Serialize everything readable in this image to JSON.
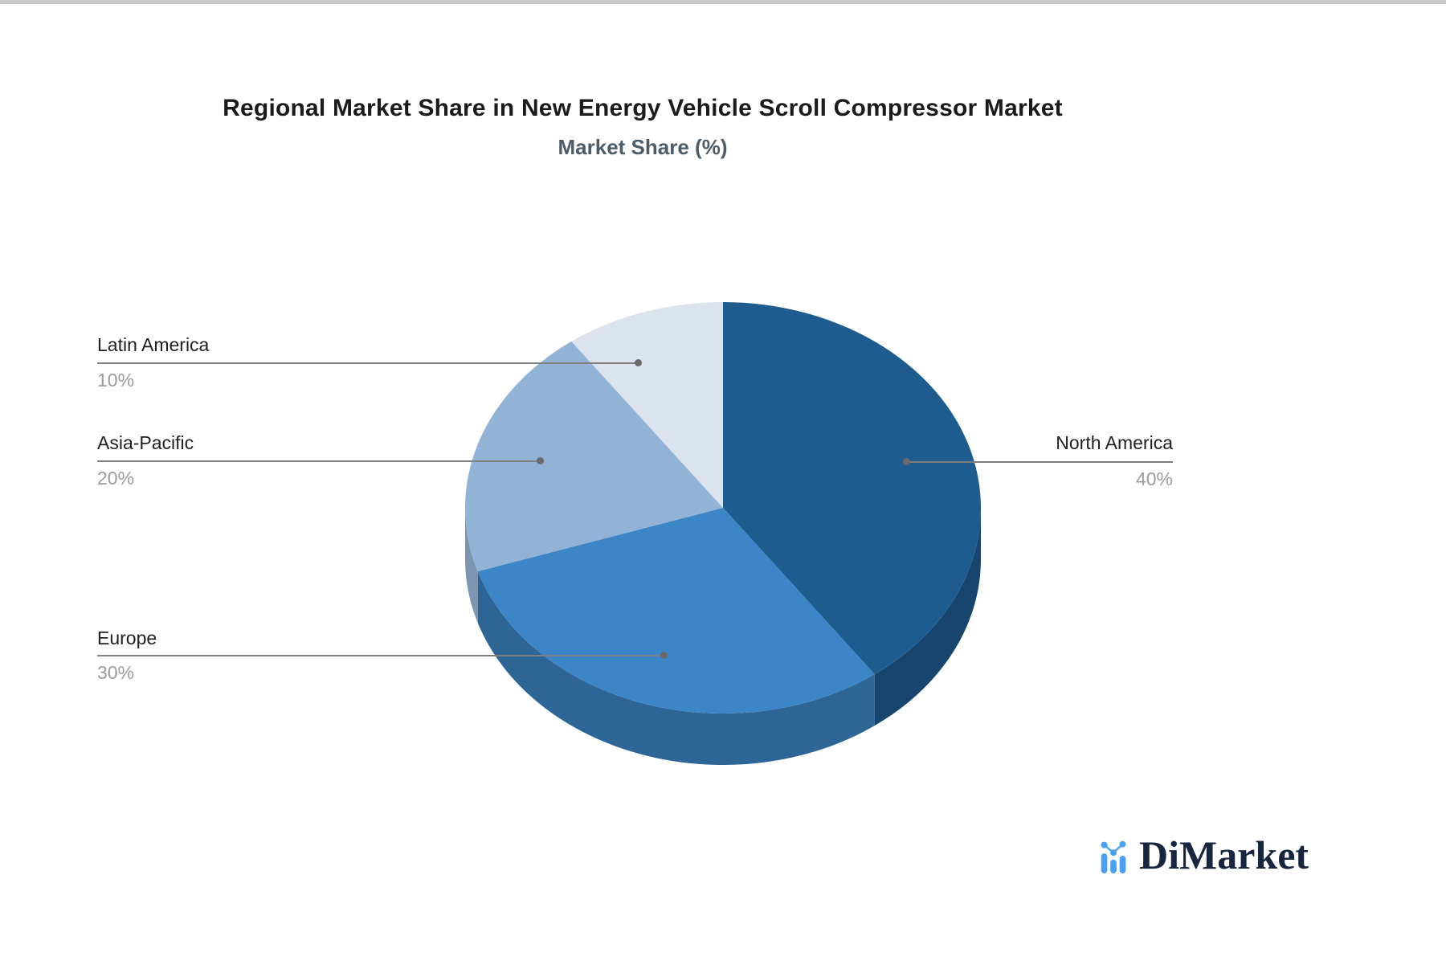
{
  "title": "Regional Market Share in New Energy Vehicle Scroll Compressor Market",
  "subtitle": "Market Share (%)",
  "callouts": [
    {
      "id": "latin-america",
      "label": "Latin America",
      "value": "10%"
    },
    {
      "id": "asia-pacific",
      "label": "Asia-Pacific",
      "value": "20%"
    },
    {
      "id": "europe",
      "label": "Europe",
      "value": "30%"
    },
    {
      "id": "north-america",
      "label": "North America",
      "value": "40%"
    }
  ],
  "brand": {
    "name": "DiMarket",
    "icon": "bar-chart-logo-icon",
    "icon_color": "#4aa1f4",
    "text_color": "#17263e"
  },
  "chart_data": {
    "type": "pie",
    "style": "3d",
    "title": "Regional Market Share in New Energy Vehicle Scroll Compressor Market",
    "subtitle": "Market Share (%)",
    "unit": "%",
    "categories": [
      "North America",
      "Europe",
      "Asia-Pacific",
      "Latin America"
    ],
    "values": [
      40,
      30,
      20,
      10
    ],
    "value_labels": [
      "40%",
      "30%",
      "20%",
      "10%"
    ],
    "colors": [
      "#1e5c90",
      "#3c85c7",
      "#93b3d6",
      "#dbe3ee"
    ],
    "side_colors": [
      "#17456d",
      "#2e6597",
      "#7c95b0",
      "#b9c4d4"
    ],
    "start_angle_deg": 0,
    "direction": "clockwise",
    "legend_position": "callout-labels",
    "leader_line_color": "#7f7f7f",
    "background": "#ffffff"
  }
}
